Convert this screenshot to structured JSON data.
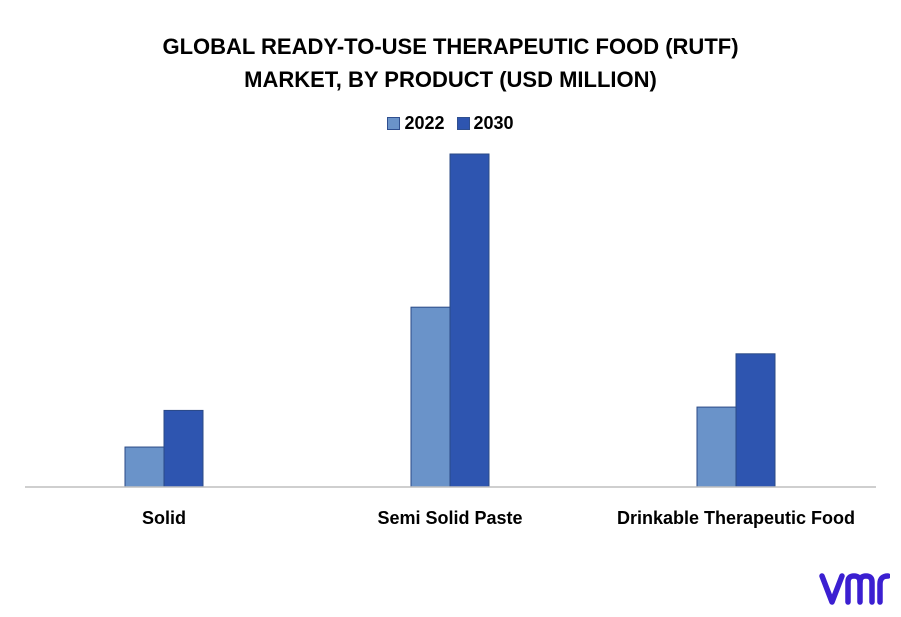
{
  "chart_data": {
    "type": "bar",
    "title": "GLOBAL READY-TO-USE THERAPEUTIC FOOD (RUTF) MARKET, BY PRODUCT (USD MILLION)",
    "title_lines": [
      "GLOBAL READY-TO-USE THERAPEUTIC FOOD (RUTF)",
      "MARKET, BY PRODUCT (USD MILLION)"
    ],
    "categories": [
      "Solid",
      "Semi Solid Paste",
      "Drinkable Therapeutic Food"
    ],
    "series": [
      {
        "name": "2022",
        "values": [
          12,
          54,
          24
        ],
        "color": "#6a93c9"
      },
      {
        "name": "2030",
        "values": [
          23,
          100,
          40
        ],
        "color": "#2e55b0"
      }
    ],
    "xlabel": "",
    "ylabel": "",
    "ylim": [
      0,
      100
    ],
    "grid": false,
    "legend_position": "top-center",
    "axis_color": "#bfbfbf"
  },
  "logo": {
    "name": "vmr-logo",
    "text": "vmr",
    "color": "#3b1fd1"
  }
}
